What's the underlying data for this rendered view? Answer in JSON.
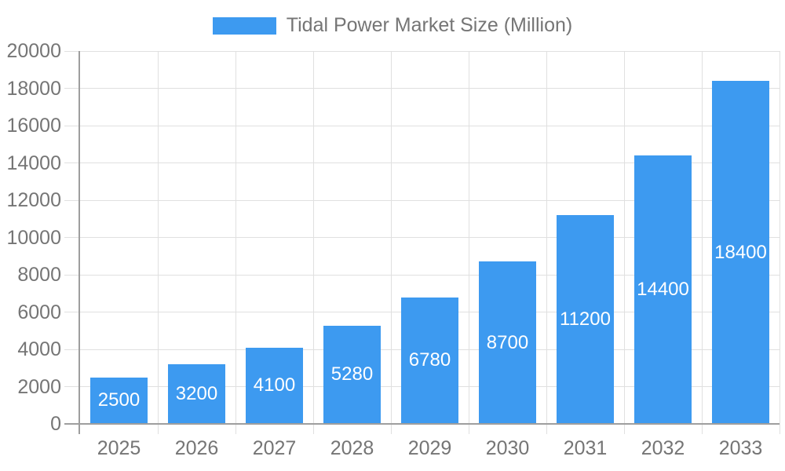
{
  "chart_data": {
    "type": "bar",
    "title": "Tidal Power Market Size (Million)",
    "legend": "Tidal Power Market Size (Million)",
    "legend_position": "top",
    "categories": [
      "2025",
      "2026",
      "2027",
      "2028",
      "2029",
      "2030",
      "2031",
      "2032",
      "2033"
    ],
    "values": [
      2500,
      3200,
      4100,
      5280,
      6780,
      8700,
      11200,
      14400,
      18400
    ],
    "xlabel": "",
    "ylabel": "",
    "ylim": [
      0,
      20000
    ],
    "ytick_interval": 2000,
    "ytick_labels": [
      "0",
      "2000",
      "4000",
      "6000",
      "8000",
      "10000",
      "12000",
      "14000",
      "16000",
      "18000",
      "20000"
    ],
    "grid": true,
    "value_labels_inside": true,
    "colors": {
      "bar": "#3d9af0",
      "value_label": "#ffffff",
      "axis_text": "#757575",
      "grid_line": "#e0e0e0",
      "axis_line": "#9e9e9e",
      "background": "#ffffff"
    }
  }
}
